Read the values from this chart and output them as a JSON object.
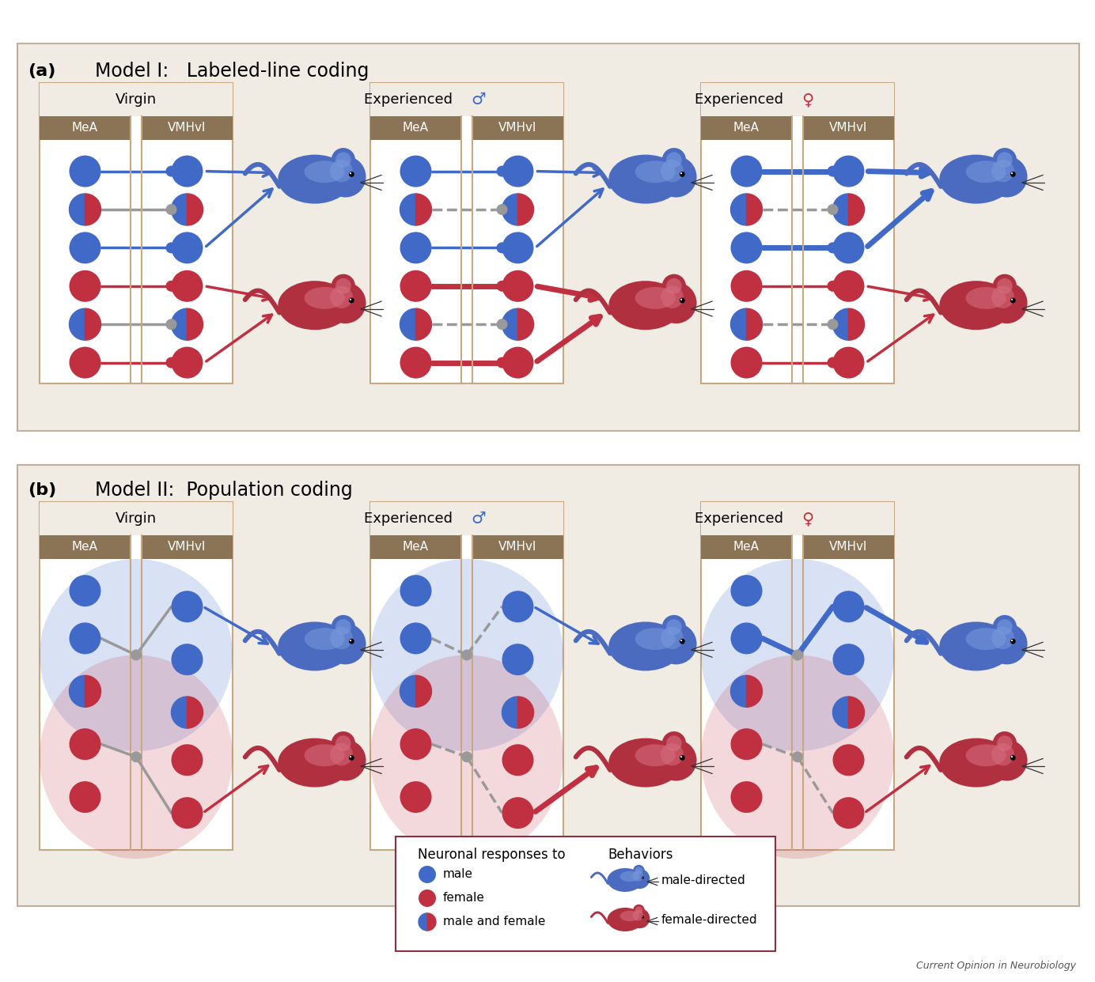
{
  "blue": "#4169C8",
  "blue_light": "#7FA0E8",
  "red": "#C03040",
  "red_light": "#E08090",
  "gray": "#999999",
  "col_header": "#8B7355",
  "bg_panel": "#F0EBE3",
  "bg_box": "#FFFFFF",
  "border_color": "#C8A882",
  "legend_border": "#8B3040",
  "source_text": "Current Opinion in Neurobiology",
  "panel_a_label": "(a)",
  "panel_b_label": "(b)",
  "panel_a_title": "Model I:   Labeled-line coding",
  "panel_b_title": "Model II:  Population coding",
  "subpanel_titles": [
    "Virgin",
    "Experienced ♂",
    "Experienced ♀"
  ],
  "col_labels": [
    "MeA",
    "VMHvl"
  ]
}
